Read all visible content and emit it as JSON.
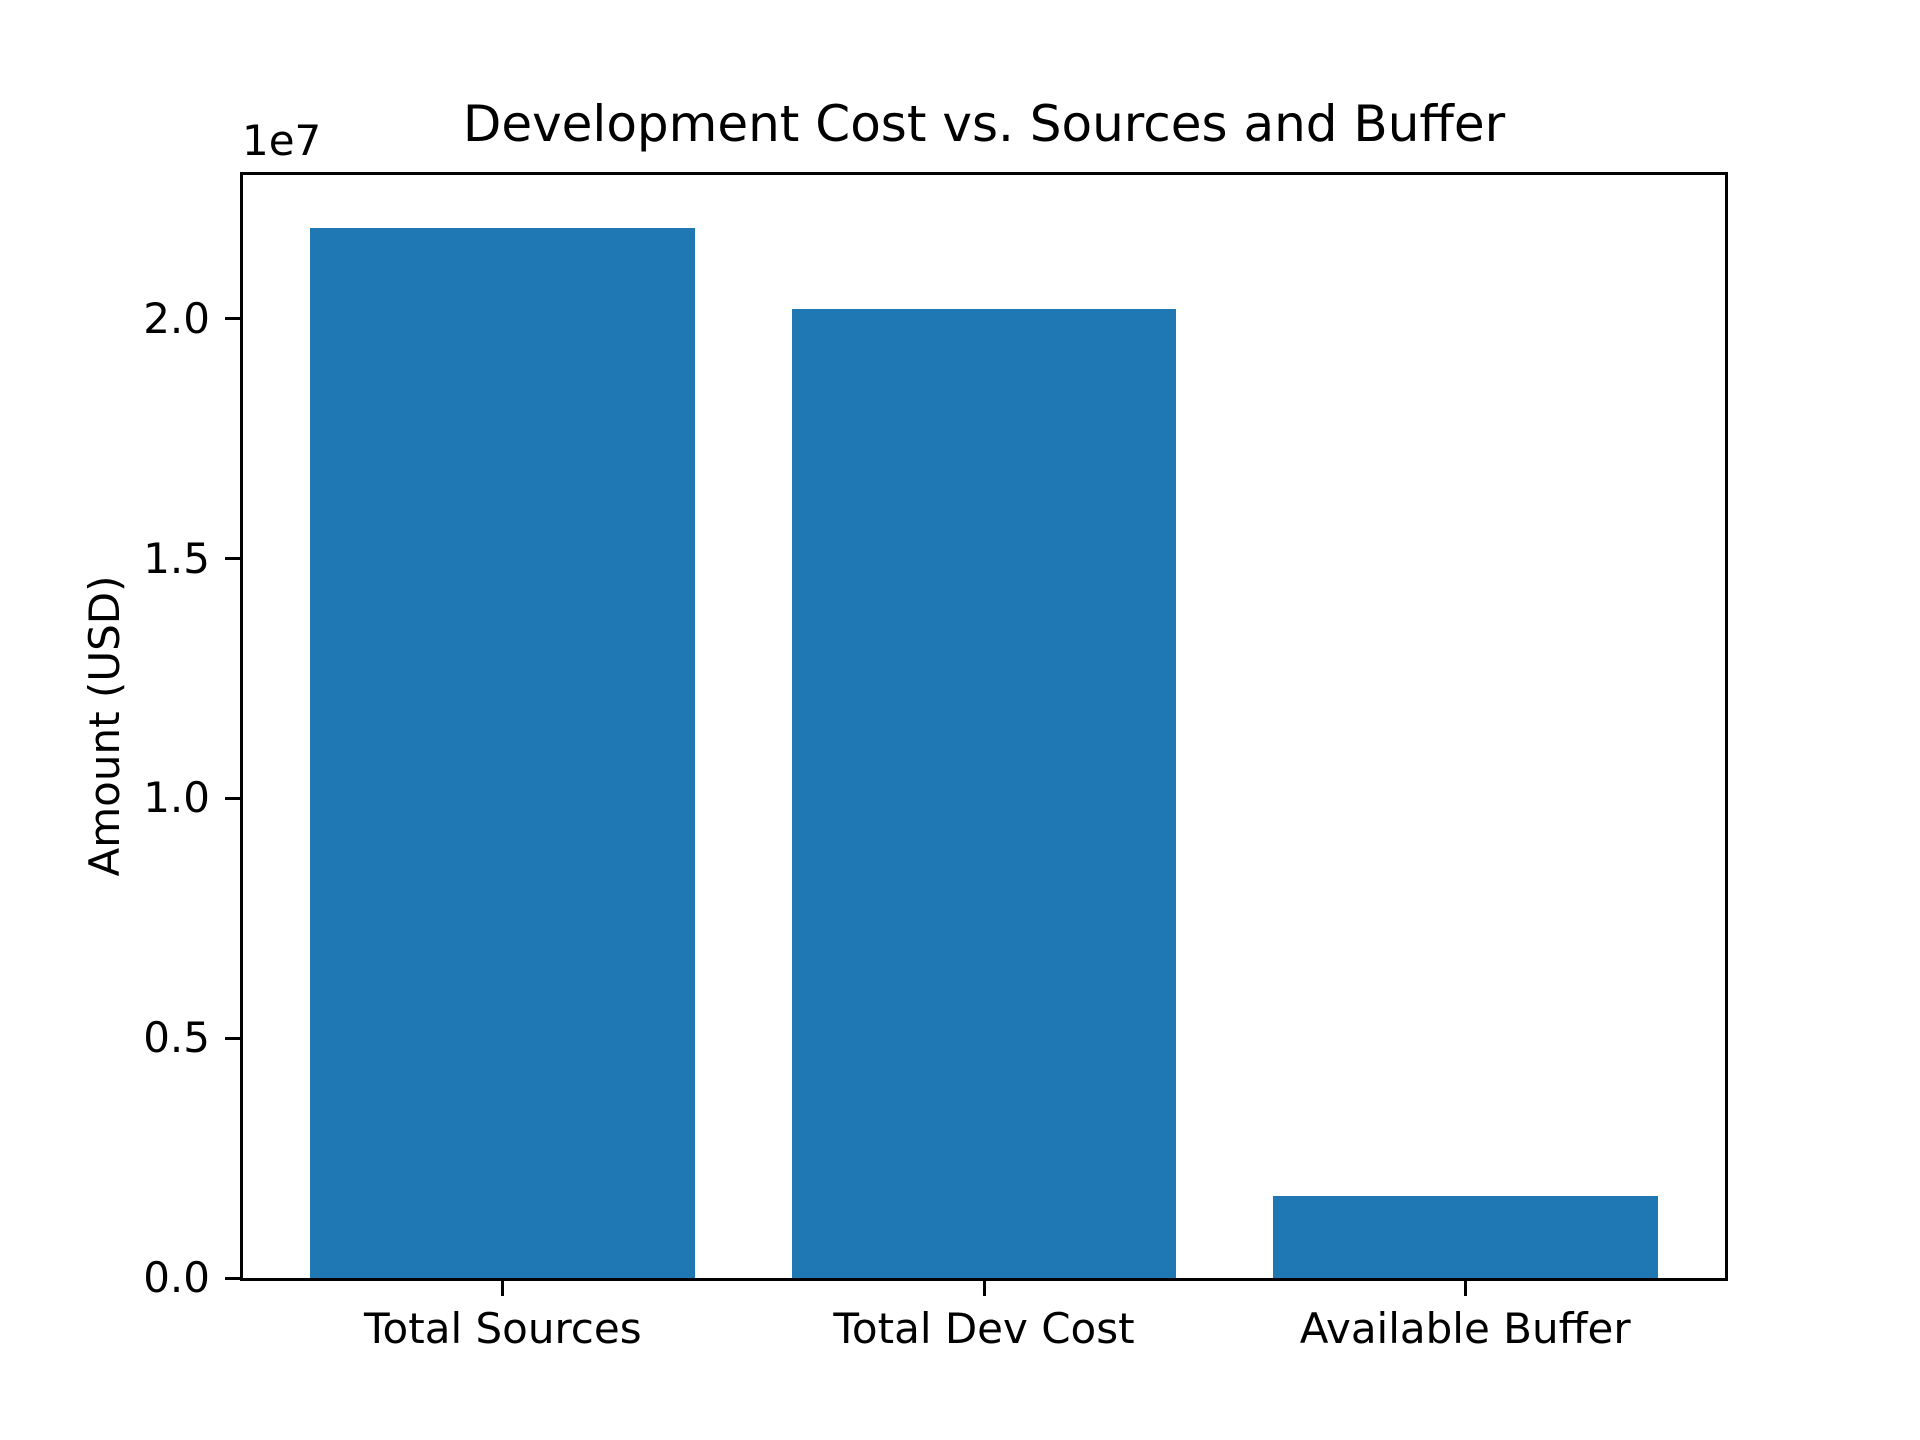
{
  "chart_data": {
    "type": "bar",
    "title": "Development Cost vs. Sources and Buffer",
    "xlabel": "",
    "ylabel": "Amount (USD)",
    "y_axis_offset_label": "1e7",
    "categories": [
      "Total Sources",
      "Total Dev Cost",
      "Available Buffer"
    ],
    "values": [
      21900000,
      20200000,
      1700000
    ],
    "ylim": [
      0,
      23000000
    ],
    "yticks": {
      "values": [
        0,
        5000000,
        10000000,
        15000000,
        20000000
      ],
      "labels": [
        "0.0",
        "0.5",
        "1.0",
        "1.5",
        "2.0"
      ]
    },
    "bar_color": "#1f77b4",
    "axis_color": "#000000",
    "background_color": "#ffffff",
    "grid": false,
    "legend": "none"
  }
}
